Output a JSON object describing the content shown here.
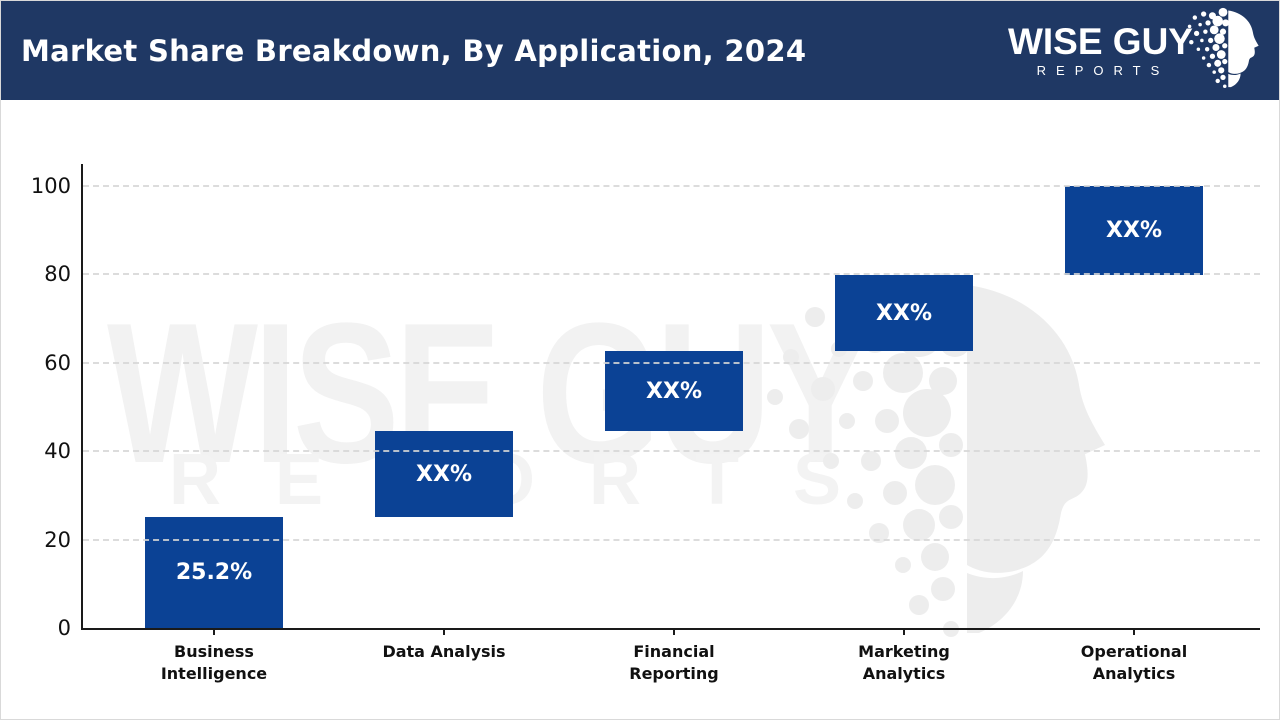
{
  "header": {
    "title": "Market Share Breakdown, By Application, 2024",
    "bg_color": "#1f3864",
    "logo": {
      "line1": "WISE GUY",
      "line2": "REPORTS"
    }
  },
  "watermark": {
    "line1": "WISE GUY",
    "line2": "REPORTS"
  },
  "chart_data": {
    "type": "bar",
    "subtype": "waterfall",
    "title": "Market Share Breakdown, By Application, 2024",
    "categories": [
      "Business\nIntelligence",
      "Data Analysis",
      "Financial\nReporting",
      "Marketing\nAnalytics",
      "Operational\nAnalytics"
    ],
    "series": [
      {
        "name": "Market Share",
        "segments": [
          {
            "category": "Business Intelligence",
            "start": 0,
            "end": 25.2,
            "label": "25.2%"
          },
          {
            "category": "Data Analysis",
            "start": 25.2,
            "end": 44.5,
            "label": "XX%"
          },
          {
            "category": "Financial Reporting",
            "start": 44.5,
            "end": 62.6,
            "label": "XX%"
          },
          {
            "category": "Marketing Analytics",
            "start": 62.6,
            "end": 79.8,
            "label": "XX%"
          },
          {
            "category": "Operational Analytics",
            "start": 79.8,
            "end": 100,
            "label": "XX%"
          }
        ]
      }
    ],
    "xlabel": "",
    "ylabel": "",
    "ylim": [
      0,
      105
    ],
    "yticks": [
      0,
      20,
      40,
      60,
      80,
      100
    ],
    "grid": "horizontal-dashed",
    "legend": "none",
    "bar_color": "#0b4295",
    "bar_label_color": "#ffffff",
    "axis_color": "#1a1a1a",
    "gridline_color": "#d6d6d6"
  }
}
